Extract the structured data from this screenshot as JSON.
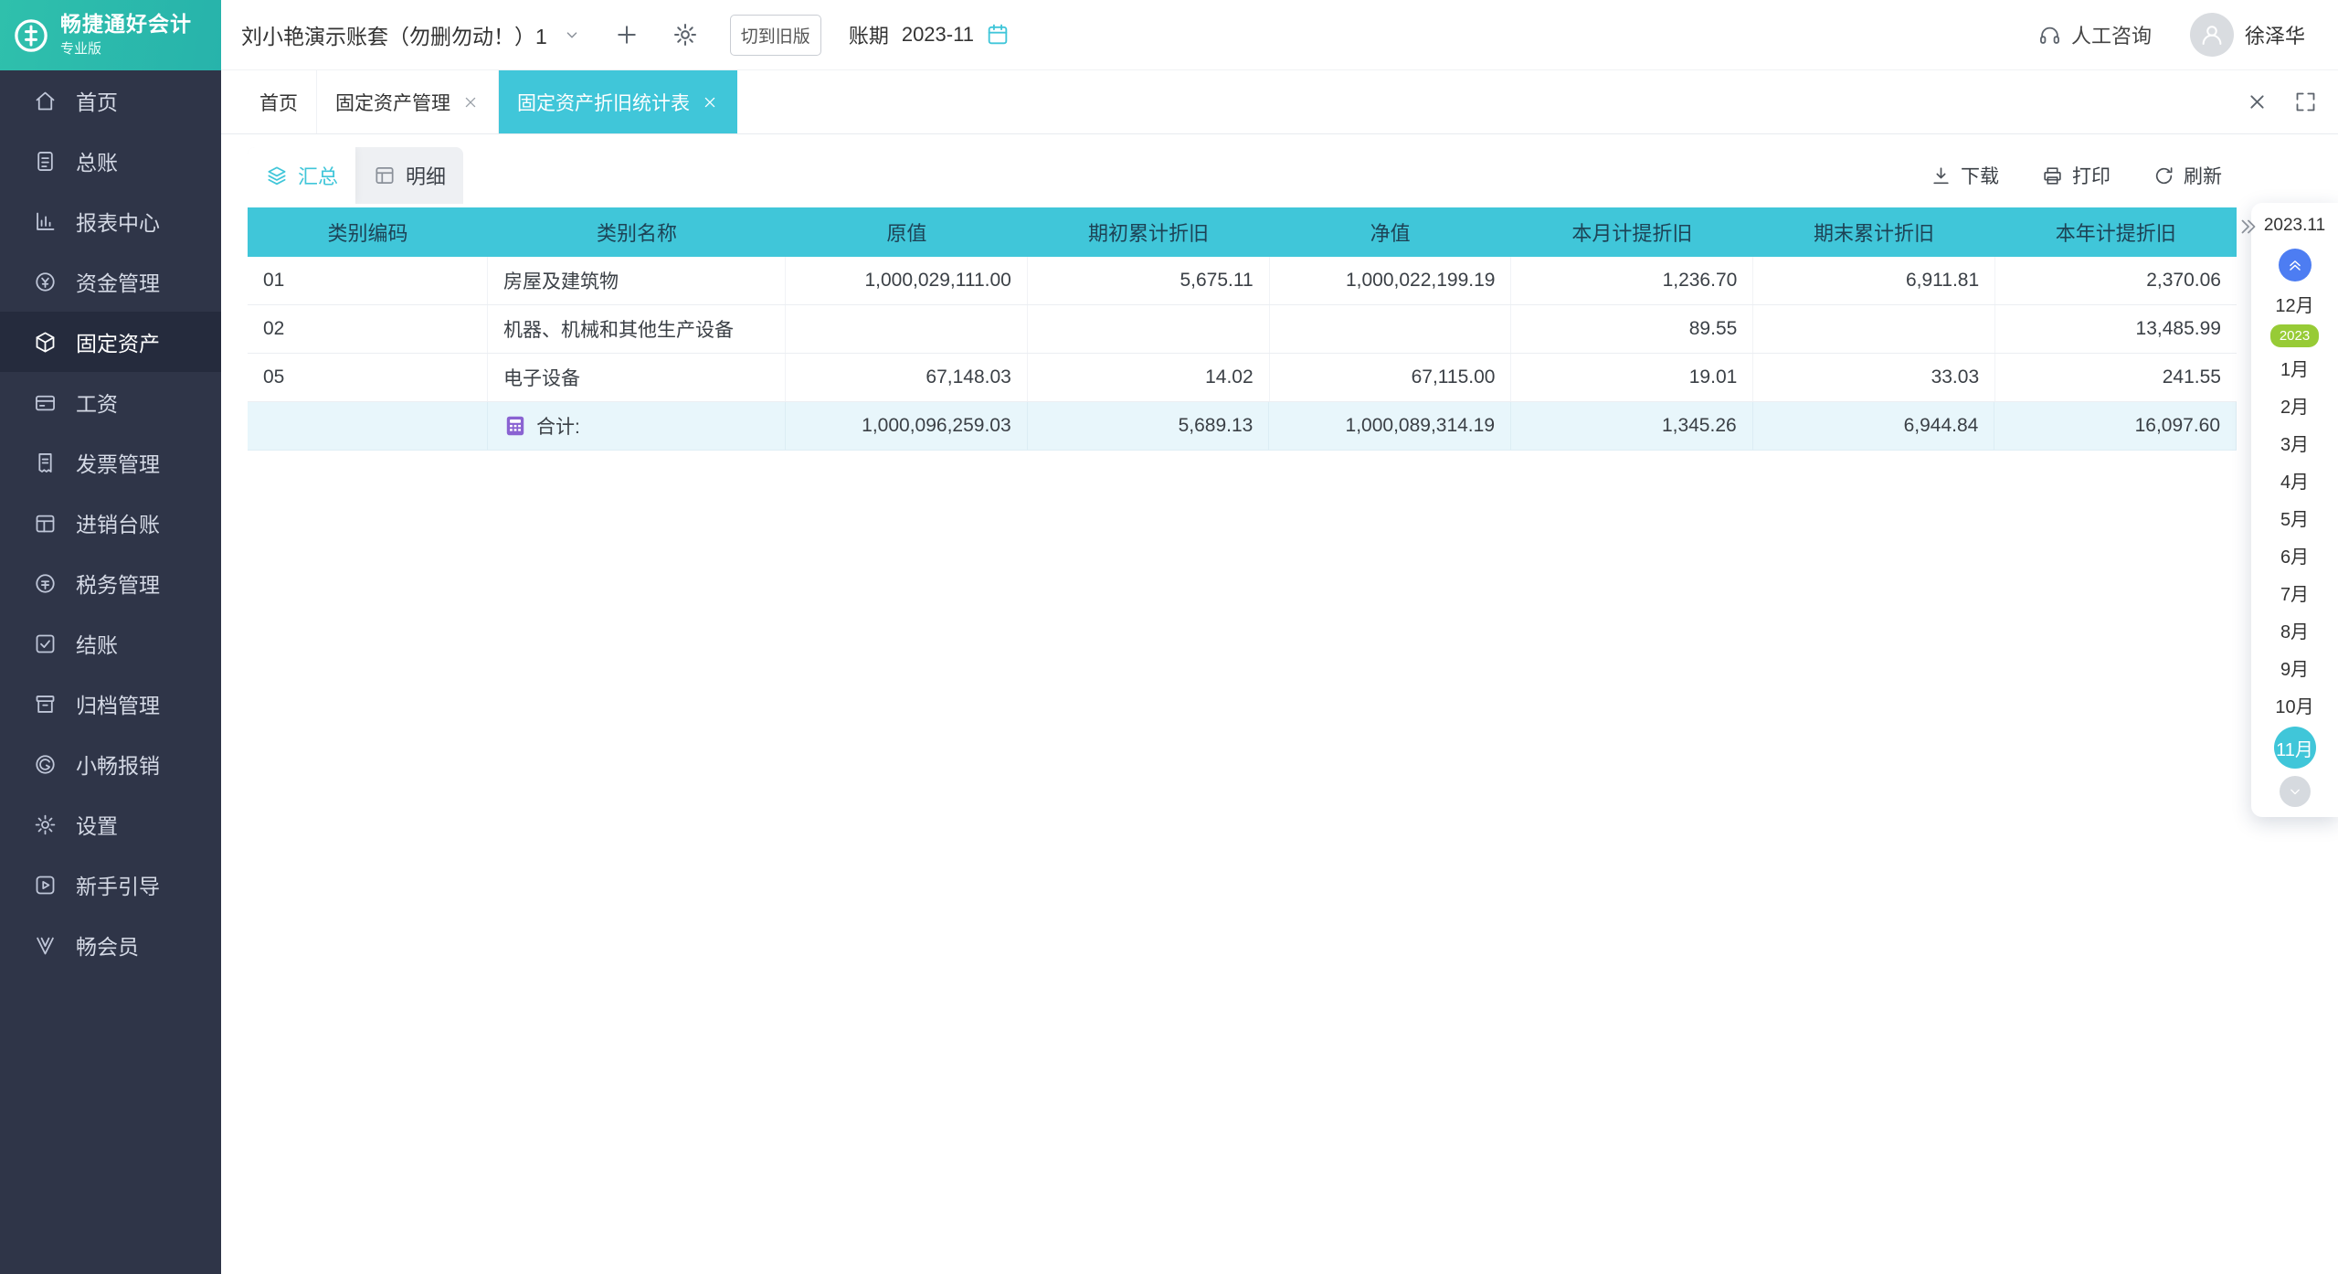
{
  "topbar": {
    "logo_title": "畅捷通好会计",
    "logo_subtitle": "专业版",
    "account_selector": "刘小艳演示账套（勿删勿动！）1",
    "switch_old_version": "切到旧版",
    "period_label": "账期",
    "period_value": "2023-11",
    "support_label": "人工咨询",
    "username": "徐泽华"
  },
  "sidebar": {
    "items": [
      {
        "label": "首页",
        "icon": "home-icon",
        "active": false
      },
      {
        "label": "总账",
        "icon": "ledger-icon",
        "active": false
      },
      {
        "label": "报表中心",
        "icon": "report-icon",
        "active": false
      },
      {
        "label": "资金管理",
        "icon": "fund-icon",
        "active": false
      },
      {
        "label": "固定资产",
        "icon": "asset-icon",
        "active": true
      },
      {
        "label": "工资",
        "icon": "salary-icon",
        "active": false
      },
      {
        "label": "发票管理",
        "icon": "invoice-icon",
        "active": false
      },
      {
        "label": "进销台账",
        "icon": "trade-icon",
        "active": false
      },
      {
        "label": "税务管理",
        "icon": "tax-icon",
        "active": false
      },
      {
        "label": "结账",
        "icon": "closing-icon",
        "active": false
      },
      {
        "label": "归档管理",
        "icon": "archive-icon",
        "active": false
      },
      {
        "label": "小畅报销",
        "icon": "expense-icon",
        "active": false
      },
      {
        "label": "设置",
        "icon": "settings-icon",
        "active": false
      },
      {
        "label": "新手引导",
        "icon": "guide-icon",
        "active": false
      },
      {
        "label": "畅会员",
        "icon": "member-icon",
        "active": false
      }
    ]
  },
  "tabs": [
    {
      "label": "首页",
      "closable": false,
      "active": false
    },
    {
      "label": "固定资产管理",
      "closable": true,
      "active": false
    },
    {
      "label": "固定资产折旧统计表",
      "closable": true,
      "active": true
    }
  ],
  "toolbar": {
    "summary_label": "汇总",
    "detail_label": "明细",
    "download_label": "下载",
    "print_label": "打印",
    "refresh_label": "刷新"
  },
  "table": {
    "headers": [
      "类别编码",
      "类别名称",
      "原值",
      "期初累计折旧",
      "净值",
      "本月计提折旧",
      "期末累计折旧",
      "本年计提折旧"
    ],
    "rows": [
      [
        "01",
        "房屋及建筑物",
        "1,000,029,111.00",
        "5,675.11",
        "1,000,022,199.19",
        "1,236.70",
        "6,911.81",
        "2,370.06"
      ],
      [
        "02",
        "机器、机械和其他生产设备",
        "",
        "",
        "",
        "89.55",
        "",
        "13,485.99"
      ],
      [
        "05",
        "电子设备",
        "67,148.03",
        "14.02",
        "67,115.00",
        "19.01",
        "33.03",
        "241.55"
      ]
    ],
    "total_label": "合计:",
    "totals": [
      "1,000,096,259.03",
      "5,689.13",
      "1,000,089,314.19",
      "1,345.26",
      "6,944.84",
      "16,097.60"
    ]
  },
  "month_panel": {
    "current_period": "2023.11",
    "months_before_year_badge": [
      "12月"
    ],
    "year_badge": "2023",
    "months_after_year_badge": [
      "1月",
      "2月",
      "3月",
      "4月",
      "5月",
      "6月",
      "7月",
      "8月",
      "9月",
      "10月",
      "11月"
    ],
    "selected_month": "11月"
  },
  "colors": {
    "accent": "#40c6d9",
    "sidebar_bg": "#2f3548",
    "sidebar_active_bg": "#252b3d",
    "logo_teal_start": "#2fc0ac",
    "logo_teal_end": "#27b3ab",
    "total_row_bg": "#e8f6fb",
    "year_badge_green": "#97cb36",
    "up_button_blue": "#4d7df2"
  }
}
